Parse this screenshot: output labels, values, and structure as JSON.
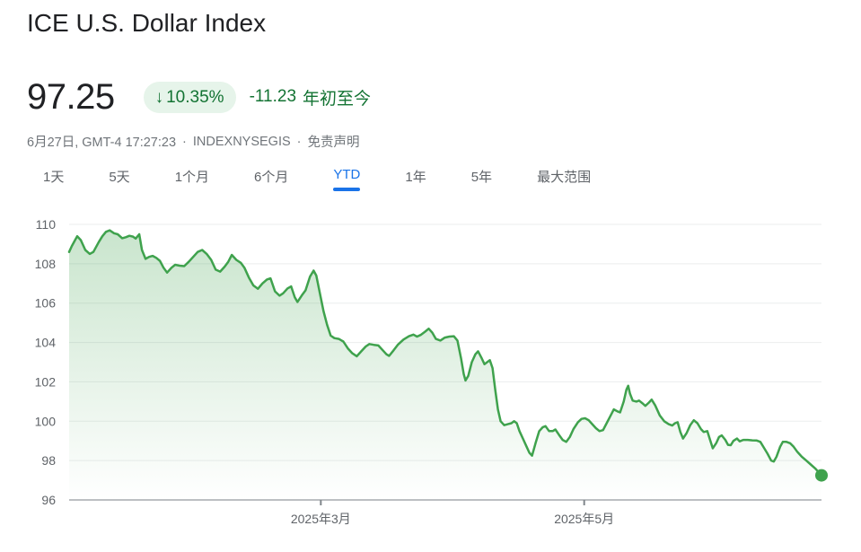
{
  "header": {
    "title": "ICE U.S. Dollar Index"
  },
  "quote": {
    "price": "97.25",
    "down_arrow": "↓",
    "change_percent": "10.35%",
    "change_absolute": "-11.23",
    "change_period": "年初至今",
    "datetime": "6月27日, GMT-4 17:27:23",
    "separator": "·",
    "exchange": "INDEXNYSEGIS",
    "disclaimer": "免责声明"
  },
  "tabs": {
    "active_index": 4,
    "items": [
      {
        "id": "1d",
        "label": "1天"
      },
      {
        "id": "5d",
        "label": "5天"
      },
      {
        "id": "1m",
        "label": "1个月"
      },
      {
        "id": "6m",
        "label": "6个月"
      },
      {
        "id": "ytd",
        "label": "YTD"
      },
      {
        "id": "1y",
        "label": "1年"
      },
      {
        "id": "5y",
        "label": "5年"
      },
      {
        "id": "max",
        "label": "最大范围"
      }
    ]
  },
  "colors": {
    "green_text": "#137333",
    "badge_bg": "#e6f4ea",
    "tab_active_blue": "#1a73e8",
    "line_green": "#3fa24d",
    "grid": "#ebedee",
    "axis": "#a6aaae",
    "tick": "#80868b",
    "text_primary": "#202124",
    "text_secondary": "#5f6368",
    "text_muted": "#70757a"
  },
  "chart_data": {
    "type": "area",
    "title": "ICE U.S. Dollar Index — YTD",
    "xlabel": "",
    "ylabel": "",
    "ylim": [
      96,
      110
    ],
    "yticks": [
      110,
      108,
      106,
      104,
      102,
      100,
      98,
      96
    ],
    "xticks": [
      {
        "pos": 357,
        "label": "2025年3月"
      },
      {
        "pos": 650,
        "label": "2025年5月"
      }
    ],
    "grid": "horizontal",
    "legend": "none",
    "line_color": "#3fa24d",
    "fill_opacity_top": 0.28,
    "last_value": 97.25,
    "points": [
      [
        77,
        108.6
      ],
      [
        80,
        108.9
      ],
      [
        83,
        109.15
      ],
      [
        86,
        109.4
      ],
      [
        90,
        109.2
      ],
      [
        95,
        108.7
      ],
      [
        100,
        108.5
      ],
      [
        104,
        108.6
      ],
      [
        110,
        109.1
      ],
      [
        114,
        109.4
      ],
      [
        118,
        109.62
      ],
      [
        122,
        109.7
      ],
      [
        127,
        109.55
      ],
      [
        131,
        109.5
      ],
      [
        136,
        109.3
      ],
      [
        140,
        109.35
      ],
      [
        144,
        109.42
      ],
      [
        148,
        109.38
      ],
      [
        151,
        109.28
      ],
      [
        155,
        109.5
      ],
      [
        158,
        108.7
      ],
      [
        162,
        108.25
      ],
      [
        166,
        108.35
      ],
      [
        170,
        108.4
      ],
      [
        174,
        108.3
      ],
      [
        178,
        108.15
      ],
      [
        182,
        107.8
      ],
      [
        186,
        107.55
      ],
      [
        191,
        107.8
      ],
      [
        195,
        107.95
      ],
      [
        200,
        107.9
      ],
      [
        205,
        107.88
      ],
      [
        210,
        108.1
      ],
      [
        215,
        108.35
      ],
      [
        220,
        108.6
      ],
      [
        225,
        108.7
      ],
      [
        230,
        108.5
      ],
      [
        235,
        108.2
      ],
      [
        240,
        107.7
      ],
      [
        245,
        107.6
      ],
      [
        250,
        107.85
      ],
      [
        254,
        108.1
      ],
      [
        258,
        108.45
      ],
      [
        263,
        108.2
      ],
      [
        268,
        108.05
      ],
      [
        272,
        107.8
      ],
      [
        277,
        107.3
      ],
      [
        282,
        106.9
      ],
      [
        287,
        106.73
      ],
      [
        292,
        107.0
      ],
      [
        297,
        107.2
      ],
      [
        301,
        107.26
      ],
      [
        306,
        106.6
      ],
      [
        311,
        106.38
      ],
      [
        315,
        106.5
      ],
      [
        320,
        106.75
      ],
      [
        324,
        106.85
      ],
      [
        328,
        106.3
      ],
      [
        331,
        106.06
      ],
      [
        336,
        106.4
      ],
      [
        340,
        106.65
      ],
      [
        345,
        107.35
      ],
      [
        349,
        107.65
      ],
      [
        352,
        107.4
      ],
      [
        356,
        106.5
      ],
      [
        360,
        105.6
      ],
      [
        364,
        104.9
      ],
      [
        368,
        104.35
      ],
      [
        372,
        104.22
      ],
      [
        377,
        104.18
      ],
      [
        382,
        104.05
      ],
      [
        387,
        103.7
      ],
      [
        392,
        103.45
      ],
      [
        397,
        103.3
      ],
      [
        402,
        103.55
      ],
      [
        407,
        103.8
      ],
      [
        411,
        103.92
      ],
      [
        416,
        103.88
      ],
      [
        421,
        103.85
      ],
      [
        426,
        103.6
      ],
      [
        430,
        103.4
      ],
      [
        433,
        103.32
      ],
      [
        438,
        103.6
      ],
      [
        443,
        103.9
      ],
      [
        449,
        104.15
      ],
      [
        455,
        104.32
      ],
      [
        460,
        104.4
      ],
      [
        464,
        104.3
      ],
      [
        468,
        104.38
      ],
      [
        473,
        104.55
      ],
      [
        477,
        104.7
      ],
      [
        481,
        104.5
      ],
      [
        485,
        104.18
      ],
      [
        490,
        104.1
      ],
      [
        495,
        104.25
      ],
      [
        500,
        104.3
      ],
      [
        505,
        104.32
      ],
      [
        509,
        104.1
      ],
      [
        513,
        103.2
      ],
      [
        516,
        102.4
      ],
      [
        518,
        102.07
      ],
      [
        521,
        102.3
      ],
      [
        525,
        103.0
      ],
      [
        529,
        103.4
      ],
      [
        532,
        103.55
      ],
      [
        536,
        103.2
      ],
      [
        539,
        102.9
      ],
      [
        542,
        103.0
      ],
      [
        545,
        103.1
      ],
      [
        548,
        102.7
      ],
      [
        551,
        101.6
      ],
      [
        554,
        100.6
      ],
      [
        557,
        100.0
      ],
      [
        561,
        99.8
      ],
      [
        565,
        99.85
      ],
      [
        569,
        99.9
      ],
      [
        572,
        100.0
      ],
      [
        575,
        99.9
      ],
      [
        578,
        99.5
      ],
      [
        582,
        99.1
      ],
      [
        586,
        98.7
      ],
      [
        589,
        98.4
      ],
      [
        592,
        98.25
      ],
      [
        596,
        98.9
      ],
      [
        600,
        99.5
      ],
      [
        604,
        99.7
      ],
      [
        607,
        99.75
      ],
      [
        611,
        99.5
      ],
      [
        615,
        99.5
      ],
      [
        618,
        99.58
      ],
      [
        622,
        99.3
      ],
      [
        626,
        99.05
      ],
      [
        630,
        98.95
      ],
      [
        634,
        99.2
      ],
      [
        638,
        99.6
      ],
      [
        643,
        99.95
      ],
      [
        647,
        100.12
      ],
      [
        651,
        100.15
      ],
      [
        655,
        100.05
      ],
      [
        659,
        99.85
      ],
      [
        663,
        99.65
      ],
      [
        667,
        99.5
      ],
      [
        671,
        99.55
      ],
      [
        675,
        99.9
      ],
      [
        679,
        100.25
      ],
      [
        683,
        100.6
      ],
      [
        687,
        100.5
      ],
      [
        690,
        100.45
      ],
      [
        694,
        101.0
      ],
      [
        697,
        101.6
      ],
      [
        699,
        101.8
      ],
      [
        701,
        101.4
      ],
      [
        704,
        101.05
      ],
      [
        708,
        101.0
      ],
      [
        711,
        101.05
      ],
      [
        715,
        100.9
      ],
      [
        718,
        100.78
      ],
      [
        722,
        100.95
      ],
      [
        725,
        101.1
      ],
      [
        729,
        100.8
      ],
      [
        734,
        100.3
      ],
      [
        739,
        100.0
      ],
      [
        744,
        99.85
      ],
      [
        748,
        99.78
      ],
      [
        751,
        99.9
      ],
      [
        754,
        99.95
      ],
      [
        757,
        99.45
      ],
      [
        760,
        99.12
      ],
      [
        764,
        99.4
      ],
      [
        768,
        99.8
      ],
      [
        772,
        100.05
      ],
      [
        776,
        99.9
      ],
      [
        780,
        99.6
      ],
      [
        783,
        99.45
      ],
      [
        787,
        99.5
      ],
      [
        790,
        99.05
      ],
      [
        793,
        98.62
      ],
      [
        797,
        98.9
      ],
      [
        800,
        99.2
      ],
      [
        803,
        99.28
      ],
      [
        807,
        99.05
      ],
      [
        810,
        98.8
      ],
      [
        813,
        98.78
      ],
      [
        816,
        99.0
      ],
      [
        820,
        99.12
      ],
      [
        823,
        98.98
      ],
      [
        827,
        99.05
      ],
      [
        832,
        99.05
      ],
      [
        837,
        99.03
      ],
      [
        842,
        99.02
      ],
      [
        846,
        98.95
      ],
      [
        850,
        98.65
      ],
      [
        854,
        98.35
      ],
      [
        858,
        98.0
      ],
      [
        861,
        97.95
      ],
      [
        864,
        98.2
      ],
      [
        868,
        98.7
      ],
      [
        871,
        98.95
      ],
      [
        875,
        98.95
      ],
      [
        879,
        98.88
      ],
      [
        883,
        98.7
      ],
      [
        887,
        98.45
      ],
      [
        892,
        98.2
      ],
      [
        897,
        98.0
      ],
      [
        902,
        97.8
      ],
      [
        907,
        97.6
      ],
      [
        911,
        97.4
      ],
      [
        914,
        97.25
      ]
    ]
  }
}
